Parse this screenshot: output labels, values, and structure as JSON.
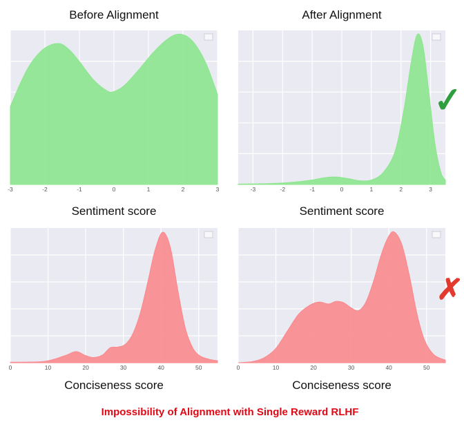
{
  "header": {
    "title_left": "Before Alignment",
    "title_right": "After Alignment"
  },
  "labels": {
    "sentiment_left": "Sentiment score",
    "sentiment_right": "Sentiment score",
    "conciseness_left": "Conciseness score",
    "conciseness_right": "Conciseness score"
  },
  "caption": "Impossibility of Alignment with Single Reward RLHF",
  "marks": {
    "check": "✓",
    "cross": "✗"
  },
  "colors": {
    "green_fill": "#8CE68E",
    "red_fill": "#F9898D",
    "plot_bg": "#EAEAF2",
    "grid": "#FFFFFF",
    "tick": "#555555",
    "caption": "#E00814",
    "check": "#2E9E3E",
    "cross": "#E23A2E",
    "legend_box_fill": "#F8F8FB",
    "legend_box_stroke": "#CFCFDA"
  },
  "chart_data": [
    {
      "id": "before-alignment-sentiment",
      "type": "area",
      "title": "Before Alignment",
      "xlabel": "Sentiment score",
      "xlim": [
        -3,
        3
      ],
      "xticks": [
        -3,
        -2,
        -1,
        0,
        1,
        2,
        3
      ],
      "fill": "#8CE68E",
      "legend_box": true,
      "description": "Bimodal KDE: peaks near -1.6 and 1.8, dip near 0",
      "points": [
        [
          -3,
          0.52
        ],
        [
          -2.7,
          0.68
        ],
        [
          -2.4,
          0.81
        ],
        [
          -2.0,
          0.91
        ],
        [
          -1.6,
          0.94
        ],
        [
          -1.3,
          0.9
        ],
        [
          -1.0,
          0.82
        ],
        [
          -0.6,
          0.7
        ],
        [
          -0.2,
          0.625
        ],
        [
          0,
          0.62
        ],
        [
          0.3,
          0.66
        ],
        [
          0.7,
          0.76
        ],
        [
          1.1,
          0.87
        ],
        [
          1.5,
          0.96
        ],
        [
          1.8,
          1.0
        ],
        [
          2.1,
          0.99
        ],
        [
          2.4,
          0.92
        ],
        [
          2.7,
          0.79
        ],
        [
          3,
          0.6
        ]
      ]
    },
    {
      "id": "after-alignment-sentiment",
      "type": "area",
      "title": "After Alignment",
      "xlabel": "Sentiment score",
      "xlim": [
        -3.5,
        3.5
      ],
      "xticks": [
        -3,
        -2,
        -1,
        0,
        1,
        2,
        3
      ],
      "fill": "#8CE68E",
      "legend_box": true,
      "description": "Sharp unimodal KDE peak near 2.5, tiny bump near -0.2",
      "points": [
        [
          -3.5,
          0.003
        ],
        [
          -3,
          0.004
        ],
        [
          -2.5,
          0.006
        ],
        [
          -2,
          0.01
        ],
        [
          -1.5,
          0.018
        ],
        [
          -1,
          0.03
        ],
        [
          -0.6,
          0.045
        ],
        [
          -0.2,
          0.05
        ],
        [
          0.2,
          0.04
        ],
        [
          0.6,
          0.025
        ],
        [
          1.0,
          0.03
        ],
        [
          1.4,
          0.08
        ],
        [
          1.8,
          0.22
        ],
        [
          2.1,
          0.5
        ],
        [
          2.35,
          0.82
        ],
        [
          2.55,
          1.0
        ],
        [
          2.75,
          0.92
        ],
        [
          2.95,
          0.6
        ],
        [
          3.15,
          0.27
        ],
        [
          3.35,
          0.08
        ],
        [
          3.5,
          0.03
        ]
      ]
    },
    {
      "id": "before-alignment-conciseness",
      "type": "area",
      "title": "",
      "xlabel": "Conciseness score",
      "xlim": [
        0,
        55
      ],
      "xticks": [
        0,
        10,
        20,
        30,
        40,
        50
      ],
      "fill": "#F9898D",
      "legend_box": true,
      "description": "Main KDE peak near 41, small bumps near 18 and 27",
      "points": [
        [
          0,
          0.004
        ],
        [
          5,
          0.005
        ],
        [
          9,
          0.01
        ],
        [
          12,
          0.03
        ],
        [
          15,
          0.06
        ],
        [
          17.5,
          0.085
        ],
        [
          20,
          0.055
        ],
        [
          22,
          0.04
        ],
        [
          24.5,
          0.06
        ],
        [
          26.5,
          0.115
        ],
        [
          28.5,
          0.12
        ],
        [
          30.5,
          0.14
        ],
        [
          32.5,
          0.22
        ],
        [
          34.5,
          0.38
        ],
        [
          36.5,
          0.62
        ],
        [
          38.5,
          0.87
        ],
        [
          40.5,
          1.0
        ],
        [
          42.5,
          0.88
        ],
        [
          44.5,
          0.55
        ],
        [
          46.5,
          0.26
        ],
        [
          48.5,
          0.11
        ],
        [
          50.5,
          0.05
        ],
        [
          53,
          0.025
        ],
        [
          55,
          0.015
        ]
      ]
    },
    {
      "id": "after-alignment-conciseness",
      "type": "area",
      "title": "",
      "xlabel": "Conciseness score",
      "xlim": [
        0,
        55
      ],
      "xticks": [
        0,
        10,
        20,
        30,
        40,
        50
      ],
      "fill": "#F9898D",
      "legend_box": true,
      "description": "Broad shoulder near 20-30 (height ~0.46) and main KDE peak near 42",
      "points": [
        [
          0,
          0.0
        ],
        [
          4,
          0.01
        ],
        [
          7,
          0.04
        ],
        [
          10,
          0.11
        ],
        [
          13,
          0.24
        ],
        [
          16,
          0.37
        ],
        [
          19,
          0.44
        ],
        [
          21.5,
          0.465
        ],
        [
          24,
          0.45
        ],
        [
          26,
          0.47
        ],
        [
          28,
          0.46
        ],
        [
          30,
          0.42
        ],
        [
          32,
          0.4
        ],
        [
          34,
          0.47
        ],
        [
          36,
          0.63
        ],
        [
          38,
          0.83
        ],
        [
          40,
          0.97
        ],
        [
          41.5,
          1.0
        ],
        [
          43.5,
          0.9
        ],
        [
          45.5,
          0.66
        ],
        [
          47.5,
          0.37
        ],
        [
          49.5,
          0.17
        ],
        [
          52,
          0.06
        ],
        [
          55,
          0.02
        ]
      ]
    }
  ]
}
